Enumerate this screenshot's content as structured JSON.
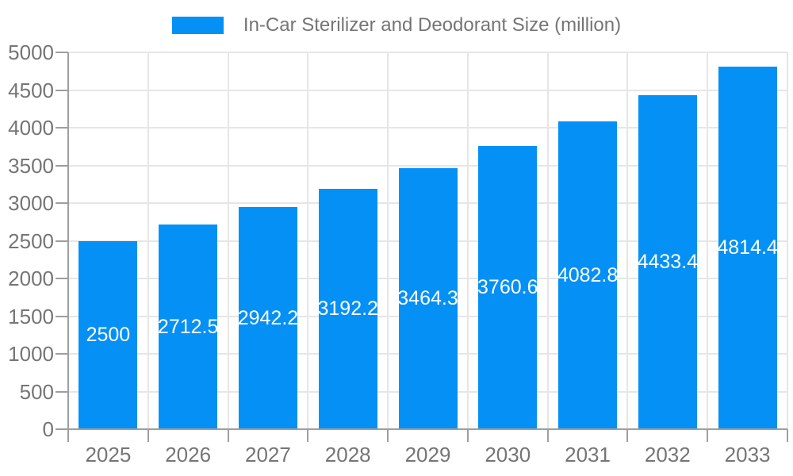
{
  "legend": {
    "label": "In-Car Sterilizer and Deodorant Size (million)"
  },
  "colors": {
    "bar": "#0590f5",
    "grid": "#e6e6e6",
    "axis": "#9e9e9e",
    "tick_label": "#757575",
    "bar_label": "#ffffff",
    "background": "#ffffff"
  },
  "chart_data": {
    "type": "bar",
    "title": "In-Car Sterilizer and Deodorant Size (million)",
    "categories": [
      "2025",
      "2026",
      "2027",
      "2028",
      "2029",
      "2030",
      "2031",
      "2032",
      "2033"
    ],
    "values": [
      2500,
      2712.5,
      2942.2,
      3192.2,
      3464.3,
      3760.6,
      4082.8,
      4433.4,
      4814.4
    ],
    "series": [
      {
        "name": "In-Car Sterilizer and Deodorant Size (million)",
        "values": [
          2500,
          2712.5,
          2942.2,
          3192.2,
          3464.3,
          3760.6,
          4082.8,
          4433.4,
          4814.4
        ]
      }
    ],
    "xlabel": "",
    "ylabel": "",
    "ylim": [
      0,
      5000
    ],
    "ytick_step": 500,
    "yticks": [
      0,
      500,
      1000,
      1500,
      2000,
      2500,
      3000,
      3500,
      4000,
      4500,
      5000
    ],
    "grid": true,
    "value_labels": "inside-center",
    "legend_position": "top"
  }
}
